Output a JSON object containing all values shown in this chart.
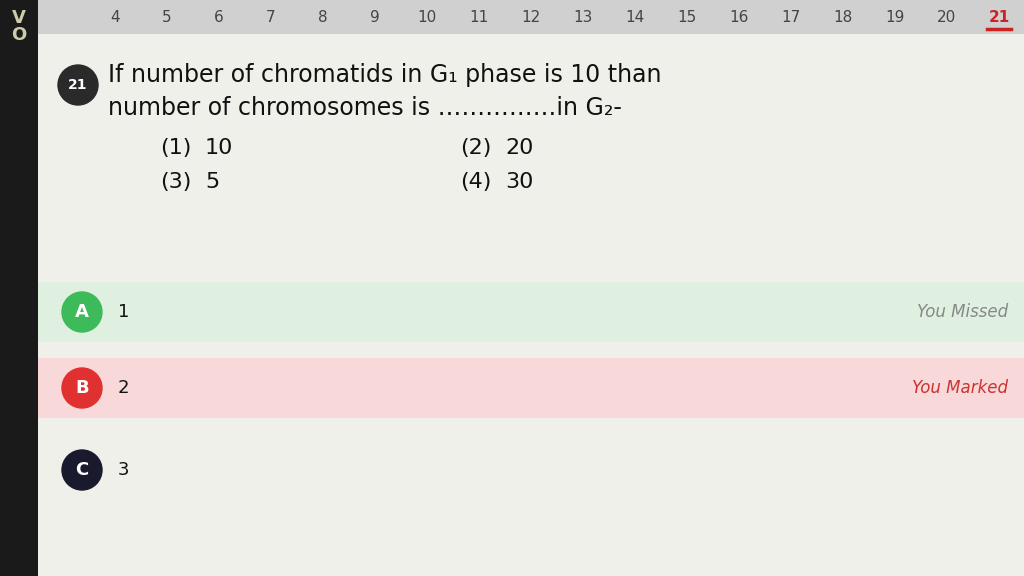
{
  "bg_color": "#f0f0eb",
  "top_bar_bg": "#c8c8c8",
  "top_numbers": [
    "4",
    "5",
    "6",
    "7",
    "8",
    "9",
    "10",
    "11",
    "12",
    "13",
    "14",
    "15",
    "16",
    "17",
    "18",
    "19",
    "20",
    "21"
  ],
  "question_number": "21",
  "question_badge_color": "#2a2a2a",
  "question_text_line1": "If number of chromatids in G₁ phase is 10 than",
  "question_text_line2": "number of chromosomes is ……………in G₂-",
  "options": [
    {
      "num": "(1)",
      "val": "10"
    },
    {
      "num": "(2)",
      "val": "20"
    },
    {
      "num": "(3)",
      "val": "5"
    },
    {
      "num": "(4)",
      "val": "30"
    }
  ],
  "answer_rows": [
    {
      "label": "A",
      "badge_color": "#3dba5a",
      "number": "1",
      "bg_color": "#dff0e0",
      "tag": "You Missed",
      "tag_color": "#888888"
    },
    {
      "label": "B",
      "badge_color": "#e03030",
      "number": "2",
      "bg_color": "#f8d8d8",
      "tag": "You Marked",
      "tag_color": "#cc3333"
    },
    {
      "label": "C",
      "badge_color": "#1a1a2e",
      "number": "3",
      "bg_color": "#f0f0eb",
      "tag": "",
      "tag_color": "#000000"
    }
  ],
  "left_strip_color": "#1a1a1a",
  "highlight_21_color": "#cc2222",
  "nav_bar_color": "#d0d0d0"
}
